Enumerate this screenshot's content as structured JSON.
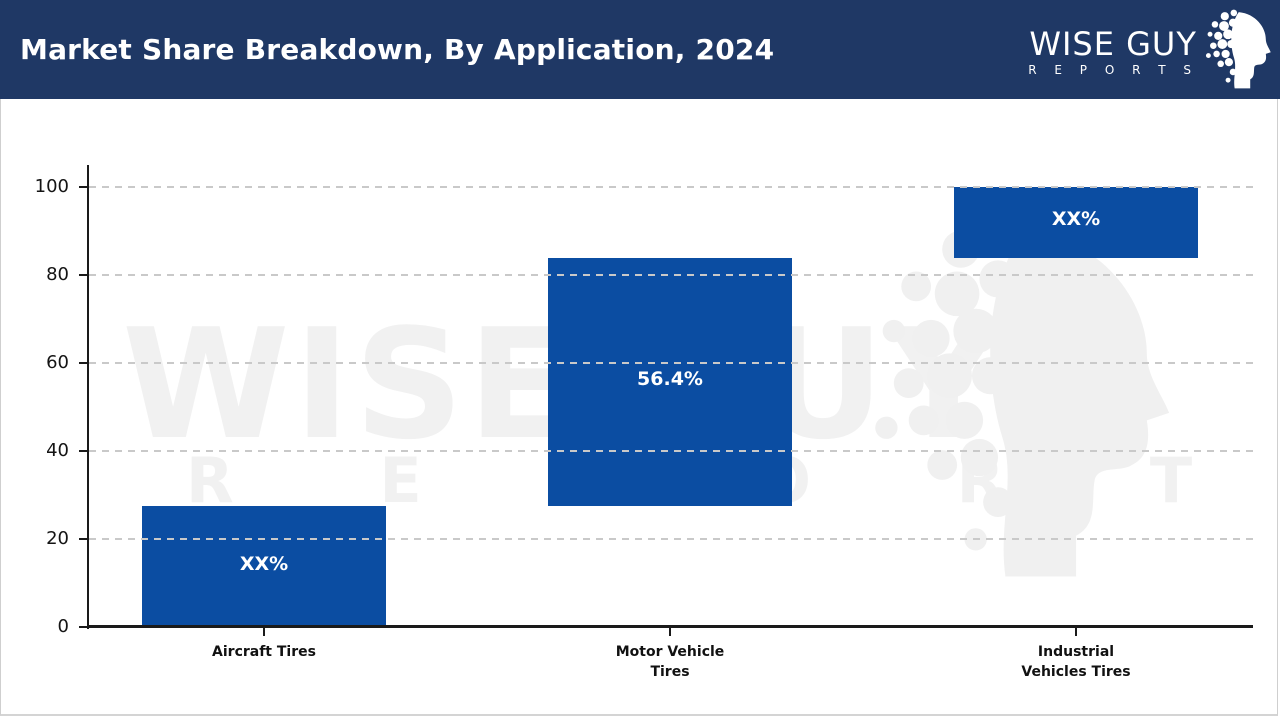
{
  "header": {
    "title": "Market Share Breakdown, By Application, 2024",
    "bg_color": "#1f3865",
    "logo": {
      "wordmark": "WISE GUY",
      "subtext": "R E P O R T S"
    }
  },
  "watermark": {
    "wordmark": "WISE GUY",
    "subtext": "R E P O R T S"
  },
  "chart_data": {
    "type": "bar",
    "subtype": "waterfall (floating segment bars)",
    "title": "Market Share Breakdown, By Application, 2024",
    "categories": [
      "Aircraft Tires",
      "Motor Vehicle Tires",
      "Industrial Vehicles Tires"
    ],
    "categories_lines": [
      [
        "Aircraft Tires"
      ],
      [
        "Motor Vehicle",
        "Tires"
      ],
      [
        "Industrial",
        "Vehicles Tires"
      ]
    ],
    "bars": [
      {
        "category": "Aircraft Tires",
        "start": 0,
        "end": 27.5,
        "label": "XX%"
      },
      {
        "category": "Motor Vehicle Tires",
        "start": 27.5,
        "end": 83.9,
        "label": "56.4%",
        "value": 56.4
      },
      {
        "category": "Industrial Vehicles Tires",
        "start": 83.9,
        "end": 100,
        "label": "XX%"
      }
    ],
    "xlabel": "",
    "ylabel": "",
    "ylim": [
      0,
      100
    ],
    "yticks": [
      0,
      20,
      40,
      60,
      80,
      100
    ],
    "grid": "horizontal dashed gridlines drawn over bars",
    "legend_position": "none",
    "bar_color": "#0b4da2",
    "label_color": "#ffffff",
    "axis_color": "#1a1a1a",
    "grid_color": "#c9c9c9"
  }
}
